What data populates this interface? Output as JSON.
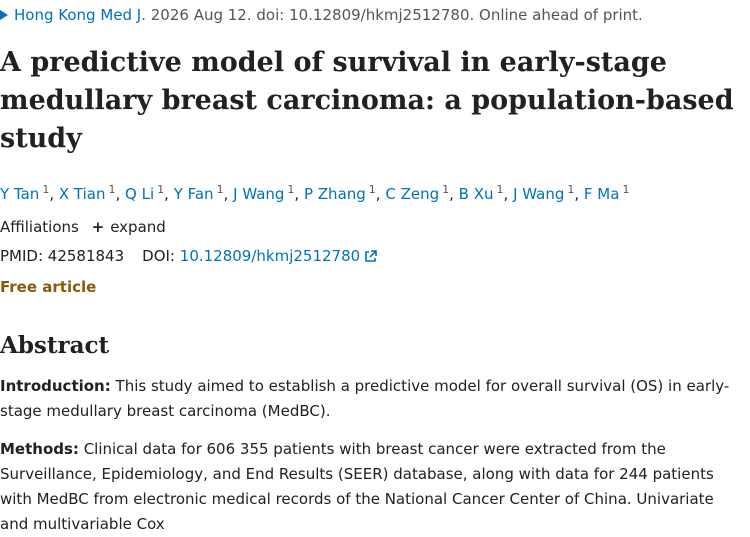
{
  "citation": {
    "journal": "Hong Kong Med J.",
    "date": "2026 Aug 12.",
    "doi_text": "doi: 10.12809/hkmj2512780.",
    "status": "Online ahead of print."
  },
  "article": {
    "title": "A predictive model of survival in early-stage medullary breast carcinoma: a population-based study"
  },
  "authors": [
    {
      "name": "Y Tan",
      "aff": "1"
    },
    {
      "name": "X Tian",
      "aff": "1"
    },
    {
      "name": "Q Li",
      "aff": "1"
    },
    {
      "name": "Y Fan",
      "aff": "1"
    },
    {
      "name": "J Wang",
      "aff": "1"
    },
    {
      "name": "P Zhang",
      "aff": "1"
    },
    {
      "name": "C Zeng",
      "aff": "1"
    },
    {
      "name": "B Xu",
      "aff": "1"
    },
    {
      "name": "J Wang",
      "aff": "1"
    },
    {
      "name": "F Ma",
      "aff": "1"
    }
  ],
  "affiliations": {
    "label": "Affiliations",
    "expand_label": "expand"
  },
  "identifiers": {
    "pmid_label": "PMID:",
    "pmid": "42581843",
    "doi_label": "DOI:",
    "doi": "10.12809/hkmj2512780"
  },
  "free_article_label": "Free article",
  "abstract": {
    "heading": "Abstract",
    "introduction_label": "Introduction:",
    "introduction_text": "This study aimed to establish a predictive model for overall survival (OS) in early-stage medullary breast carcinoma (MedBC).",
    "methods_label": "Methods:",
    "methods_text": "Clinical data for 606 355 patients with breast cancer were extracted from the Surveillance, Epidemiology, and End Results (SEER) database, along with data for 244 patients with MedBC from electronic medical records of the National Cancer Center of China. Univariate and multivariable Cox"
  },
  "icons": {
    "journal_marker": "triangle-right-icon",
    "doi_link": "external-link-icon"
  },
  "colors": {
    "link": "#0071bc",
    "free_article": "#8a5a0b",
    "text": "#212121"
  }
}
